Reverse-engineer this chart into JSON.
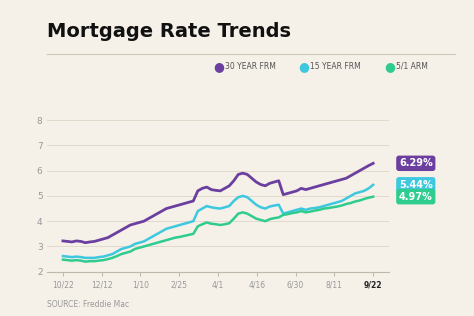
{
  "title": "Mortgage Rate Trends",
  "background_color": "#f5f0e8",
  "source_text": "SOURCE: Freddie Mac",
  "legend": [
    "30 YEAR FRM",
    "15 YEAR FRM",
    "5/1 ARM"
  ],
  "legend_colors": [
    "#6b3fa0",
    "#3ec8e0",
    "#2ecc8e"
  ],
  "x_labels": [
    "10/22",
    "12/12",
    "1/10",
    "2/25",
    "4/1",
    "4/16",
    "6/30",
    "8/11",
    "9/22"
  ],
  "ylim": [
    2,
    8.5
  ],
  "yticks": [
    2,
    3,
    4,
    5,
    6,
    7,
    8
  ],
  "end_labels": [
    "6.29%",
    "5.44%",
    "4.97%"
  ],
  "end_label_colors": [
    "#6b3fa0",
    "#3ec8e0",
    "#2ecc8e"
  ],
  "series_30yr": [
    3.22,
    3.2,
    3.18,
    3.22,
    3.2,
    3.15,
    3.18,
    3.2,
    3.25,
    3.3,
    3.35,
    3.45,
    3.55,
    3.65,
    3.75,
    3.85,
    3.9,
    3.95,
    4.0,
    4.1,
    4.2,
    4.3,
    4.4,
    4.5,
    4.55,
    4.6,
    4.65,
    4.7,
    4.75,
    4.8,
    5.2,
    5.3,
    5.35,
    5.25,
    5.22,
    5.2,
    5.3,
    5.4,
    5.6,
    5.85,
    5.9,
    5.85,
    5.7,
    5.55,
    5.45,
    5.4,
    5.5,
    5.55,
    5.6,
    5.05,
    5.1,
    5.15,
    5.2,
    5.3,
    5.25,
    5.3,
    5.35,
    5.4,
    5.45,
    5.5,
    5.55,
    5.6,
    5.65,
    5.7,
    5.8,
    5.9,
    6.0,
    6.1,
    6.2,
    6.29
  ],
  "series_15yr": [
    2.62,
    2.6,
    2.58,
    2.6,
    2.58,
    2.55,
    2.55,
    2.55,
    2.58,
    2.6,
    2.65,
    2.7,
    2.8,
    2.9,
    2.95,
    3.0,
    3.1,
    3.15,
    3.2,
    3.3,
    3.4,
    3.5,
    3.6,
    3.7,
    3.75,
    3.8,
    3.85,
    3.9,
    3.95,
    4.0,
    4.4,
    4.5,
    4.6,
    4.55,
    4.52,
    4.5,
    4.55,
    4.6,
    4.8,
    4.95,
    5.0,
    4.95,
    4.8,
    4.65,
    4.55,
    4.5,
    4.58,
    4.62,
    4.65,
    4.3,
    4.35,
    4.4,
    4.45,
    4.5,
    4.45,
    4.5,
    4.52,
    4.55,
    4.6,
    4.65,
    4.7,
    4.75,
    4.8,
    4.9,
    5.0,
    5.1,
    5.15,
    5.2,
    5.3,
    5.44
  ],
  "series_arm": [
    2.48,
    2.46,
    2.44,
    2.46,
    2.44,
    2.4,
    2.42,
    2.42,
    2.44,
    2.46,
    2.5,
    2.55,
    2.62,
    2.7,
    2.75,
    2.8,
    2.9,
    2.95,
    3.0,
    3.05,
    3.1,
    3.15,
    3.2,
    3.25,
    3.3,
    3.35,
    3.38,
    3.42,
    3.46,
    3.5,
    3.8,
    3.88,
    3.95,
    3.9,
    3.88,
    3.85,
    3.88,
    3.92,
    4.1,
    4.3,
    4.35,
    4.3,
    4.2,
    4.1,
    4.05,
    4.0,
    4.08,
    4.12,
    4.15,
    4.25,
    4.28,
    4.32,
    4.35,
    4.4,
    4.35,
    4.38,
    4.42,
    4.45,
    4.5,
    4.52,
    4.55,
    4.58,
    4.62,
    4.68,
    4.72,
    4.78,
    4.82,
    4.88,
    4.93,
    4.97
  ]
}
